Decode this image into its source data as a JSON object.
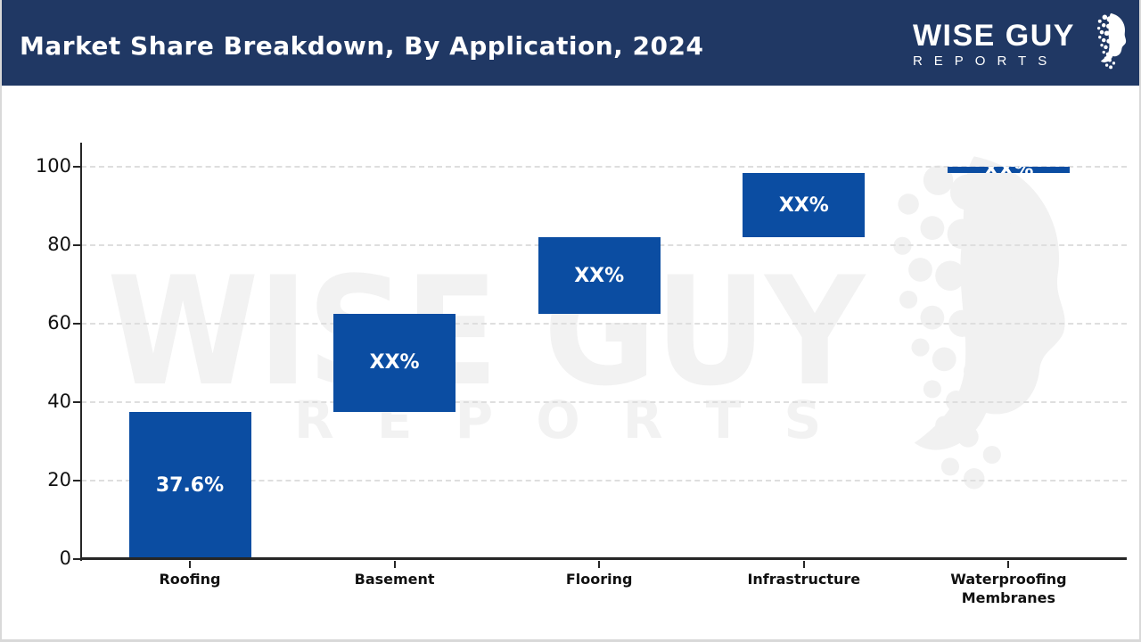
{
  "header": {
    "title": "Market Share Breakdown, By Application, 2024",
    "bg_color": "#203864",
    "logo": {
      "line1": "WISE GUY",
      "line2": "REPORTS"
    }
  },
  "watermark": {
    "line1": "WISE GUY",
    "line2": "R E P O R T S"
  },
  "chart_data": {
    "type": "bar",
    "subtype": "waterfall-stacked-percentage",
    "title": "Market Share Breakdown, By Application, 2024",
    "categories": [
      "Roofing",
      "Basement",
      "Flooring",
      "Infrastructure",
      "Waterproofing Membranes"
    ],
    "segments": [
      {
        "category": "Roofing",
        "start": 0,
        "end": 37.6,
        "label": "37.6%"
      },
      {
        "category": "Basement",
        "start": 37.6,
        "end": 62.4,
        "label": "XX%"
      },
      {
        "category": "Flooring",
        "start": 62.4,
        "end": 82.0,
        "label": "XX%"
      },
      {
        "category": "Infrastructure",
        "start": 82.0,
        "end": 98.4,
        "label": "XX%"
      },
      {
        "category": "Waterproofing Membranes",
        "start": 98.4,
        "end": 100,
        "label": "XX%"
      }
    ],
    "yticks": [
      0,
      20,
      40,
      60,
      80,
      100
    ],
    "ylim": [
      0,
      106
    ],
    "xlabel": "",
    "ylabel": "",
    "grid": "horizontal-dashed",
    "legend": "none",
    "bar_color": "#0b4da2",
    "bar_label_color": "#ffffff",
    "axis_color": "#262626",
    "grid_color": "#dedede"
  }
}
